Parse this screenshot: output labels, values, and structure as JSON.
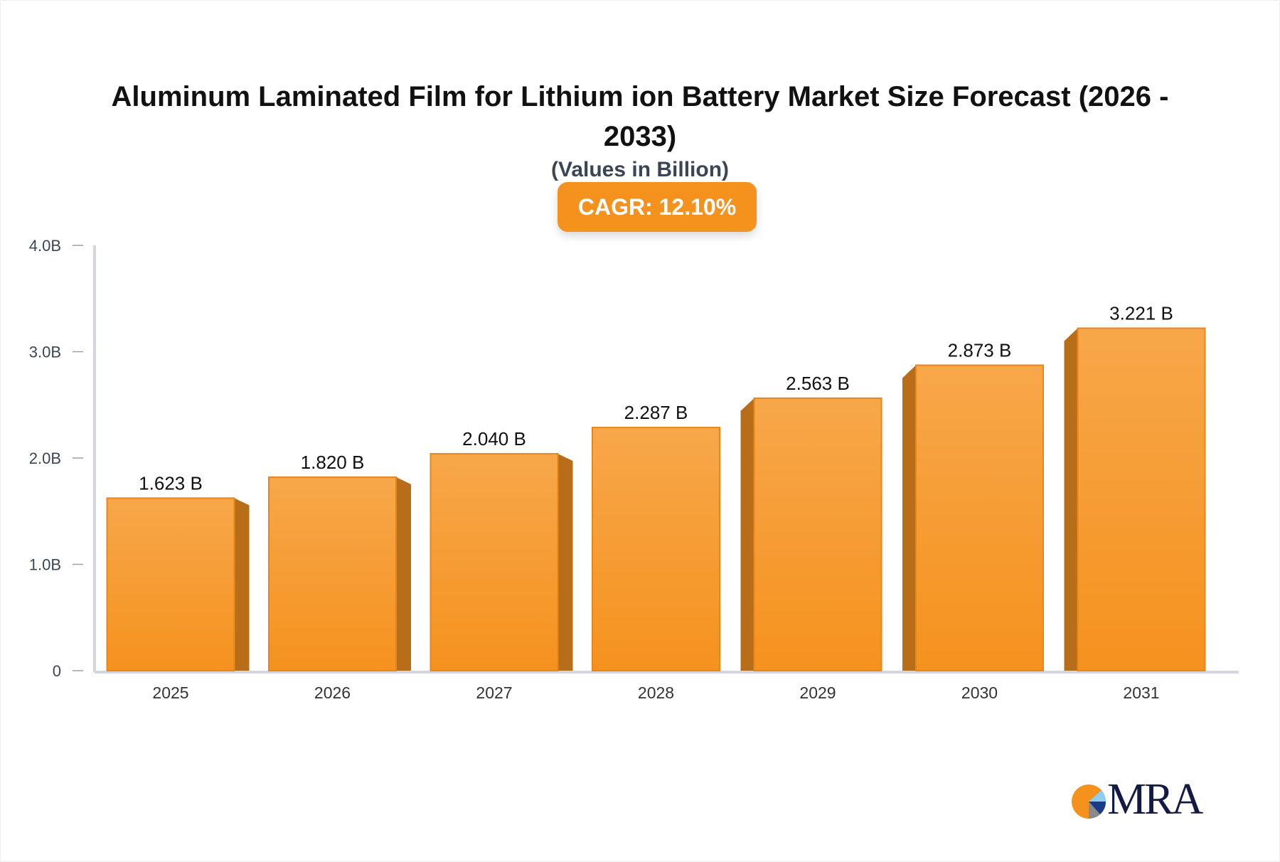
{
  "chart_data": {
    "type": "bar",
    "title": "Aluminum Laminated Film for Lithium ion Battery Market Size Forecast (2026 - 2033)",
    "subtitle": "(Values in Billion)",
    "badge": "CAGR: 12.10%",
    "categories": [
      "2025",
      "2026",
      "2027",
      "2028",
      "2029",
      "2030",
      "2031"
    ],
    "values": [
      1.623,
      1.82,
      2.04,
      2.287,
      2.563,
      2.873,
      3.221
    ],
    "data_labels": [
      "1.623 B",
      "1.820 B",
      "2.040 B",
      "2.287 B",
      "2.563 B",
      "2.873 B",
      "3.221 B"
    ],
    "yticks": [
      0,
      1,
      2,
      3,
      4
    ],
    "ytick_labels": [
      "0",
      "1.0B",
      "2.0B",
      "3.0B",
      "4.0B"
    ],
    "ylim": [
      0,
      4
    ],
    "xlabel": "",
    "ylabel": "",
    "grid": false,
    "colors": {
      "bar_top": "#f7a74a",
      "bar_bottom": "#f5921e",
      "bar_side": "#b86d18",
      "axis": "#d4d6dd"
    }
  },
  "logo": {
    "text": "MRA"
  }
}
